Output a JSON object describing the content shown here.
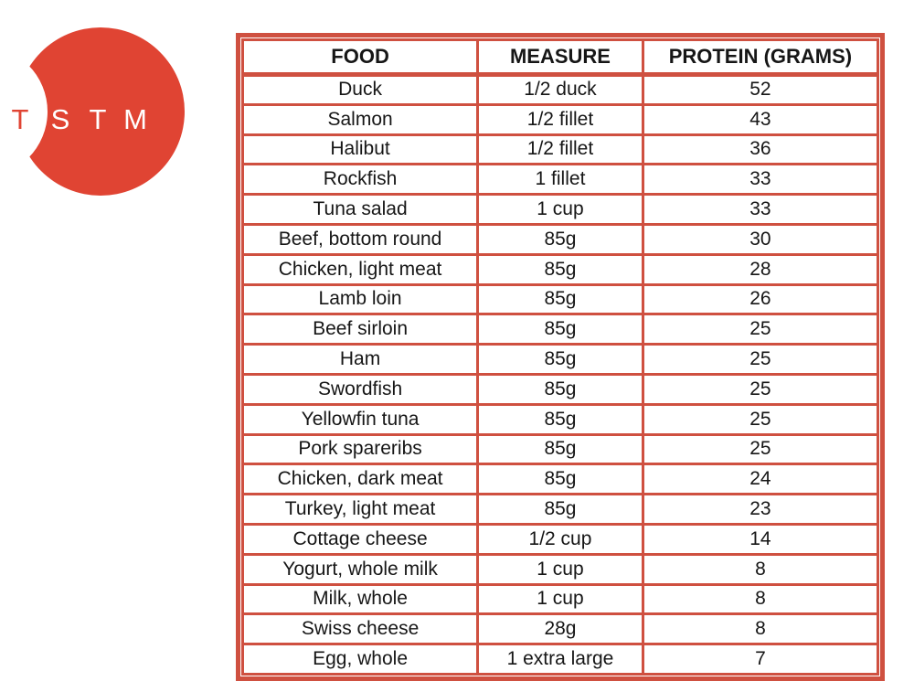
{
  "colors": {
    "logo_red": "#E04433",
    "table_red": "#CF5040",
    "text": "#161616",
    "background": "#FFFFFF"
  },
  "logo": {
    "letters": [
      "T",
      "S",
      "T",
      "M"
    ]
  },
  "chart_data": {
    "type": "table",
    "columns": [
      "FOOD",
      "MEASURE",
      "PROTEIN (GRAMS)"
    ],
    "rows": [
      [
        "Duck",
        "1/2 duck",
        52
      ],
      [
        "Salmon",
        "1/2 fillet",
        43
      ],
      [
        "Halibut",
        "1/2 fillet",
        36
      ],
      [
        "Rockfish",
        "1 fillet",
        33
      ],
      [
        "Tuna salad",
        "1 cup",
        33
      ],
      [
        "Beef, bottom round",
        "85g",
        30
      ],
      [
        "Chicken, light meat",
        "85g",
        28
      ],
      [
        "Lamb loin",
        "85g",
        26
      ],
      [
        "Beef sirloin",
        "85g",
        25
      ],
      [
        "Ham",
        "85g",
        25
      ],
      [
        "Swordfish",
        "85g",
        25
      ],
      [
        "Yellowfin tuna",
        "85g",
        25
      ],
      [
        "Pork spareribs",
        "85g",
        25
      ],
      [
        "Chicken, dark meat",
        "85g",
        24
      ],
      [
        "Turkey, light meat",
        "85g",
        23
      ],
      [
        "Cottage cheese",
        "1/2 cup",
        14
      ],
      [
        "Yogurt, whole milk",
        "1 cup",
        8
      ],
      [
        "Milk, whole",
        "1 cup",
        8
      ],
      [
        "Swiss cheese",
        "28g",
        8
      ],
      [
        "Egg, whole",
        "1 extra large",
        7
      ]
    ]
  }
}
